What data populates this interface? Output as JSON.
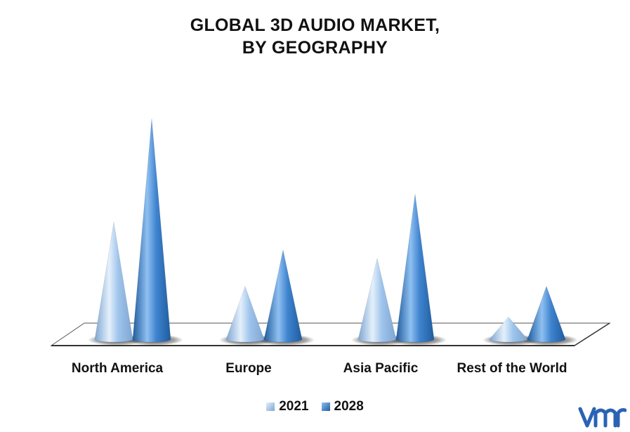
{
  "chart_data": {
    "type": "bar",
    "title": [
      "GLOBAL 3D AUDIO MARKET,",
      "BY GEOGRAPHY"
    ],
    "categories": [
      "North America",
      "Europe",
      "Asia Pacific",
      "Rest of the World"
    ],
    "series": [
      {
        "name": "2021",
        "values": [
          4.2,
          1.9,
          2.9,
          0.8
        ],
        "color": "#9fc4ec"
      },
      {
        "name": "2028",
        "values": [
          7.9,
          3.2,
          5.2,
          1.9
        ],
        "color": "#3f84cf"
      }
    ],
    "ylim": [
      0,
      8
    ],
    "grid": false,
    "legend_position": "bottom",
    "bar_shape": "cone"
  },
  "colors": {
    "s2021_light": "#e4f0fb",
    "s2021_dark": "#7ea6d2",
    "s2028_light": "#8fc0f0",
    "s2028_dark": "#1f5c9e",
    "floor": "#ffffff",
    "floor_edge": "#555555",
    "logo": "#2a63b5"
  },
  "logo_icon": "vmr-logo-icon"
}
